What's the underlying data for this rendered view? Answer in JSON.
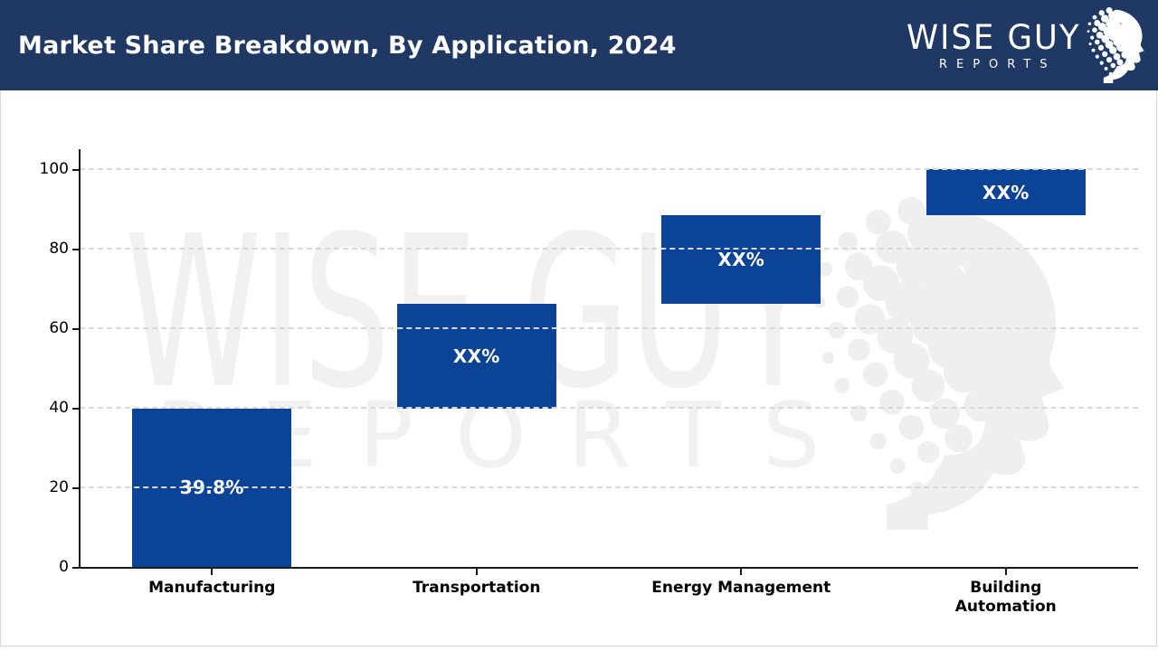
{
  "header": {
    "title": "Market Share Breakdown, By Application, 2024",
    "logo": {
      "line1": "WISE GUY",
      "line2": "REPORTS"
    }
  },
  "watermark": {
    "line1": "WISE GUY",
    "line2": "REPORTS"
  },
  "colors": {
    "header_bg": "#1f3864",
    "bar": "#0b4397",
    "bar_label": "#ffffff",
    "grid": "#d8d8d8",
    "axis": "#1a1a1a",
    "watermark": "#f1f1f1"
  },
  "chart_data": {
    "type": "bar",
    "subtype": "floating-waterfall",
    "title": "Market Share Breakdown, By Application, 2024",
    "categories": [
      "Manufacturing",
      "Transportation",
      "Energy Management",
      "Building Automation"
    ],
    "category_display": [
      "Manufacturing",
      "Transportation",
      "Energy Management",
      "Building\nAutomation"
    ],
    "segments": [
      {
        "category": "Manufacturing",
        "start": 0.0,
        "end": 39.8,
        "label": "39.8%"
      },
      {
        "category": "Transportation",
        "start": 39.8,
        "end": 66.2,
        "label": "XX%"
      },
      {
        "category": "Energy Management",
        "start": 66.2,
        "end": 88.4,
        "label": "XX%"
      },
      {
        "category": "Building Automation",
        "start": 88.4,
        "end": 100.0,
        "label": "XX%"
      }
    ],
    "y_ticks": [
      0,
      20,
      40,
      60,
      80,
      100
    ],
    "ylim": [
      0,
      105
    ],
    "xlabel": "",
    "ylabel": "",
    "grid": true,
    "grid_style": "dashed",
    "legend": false
  }
}
